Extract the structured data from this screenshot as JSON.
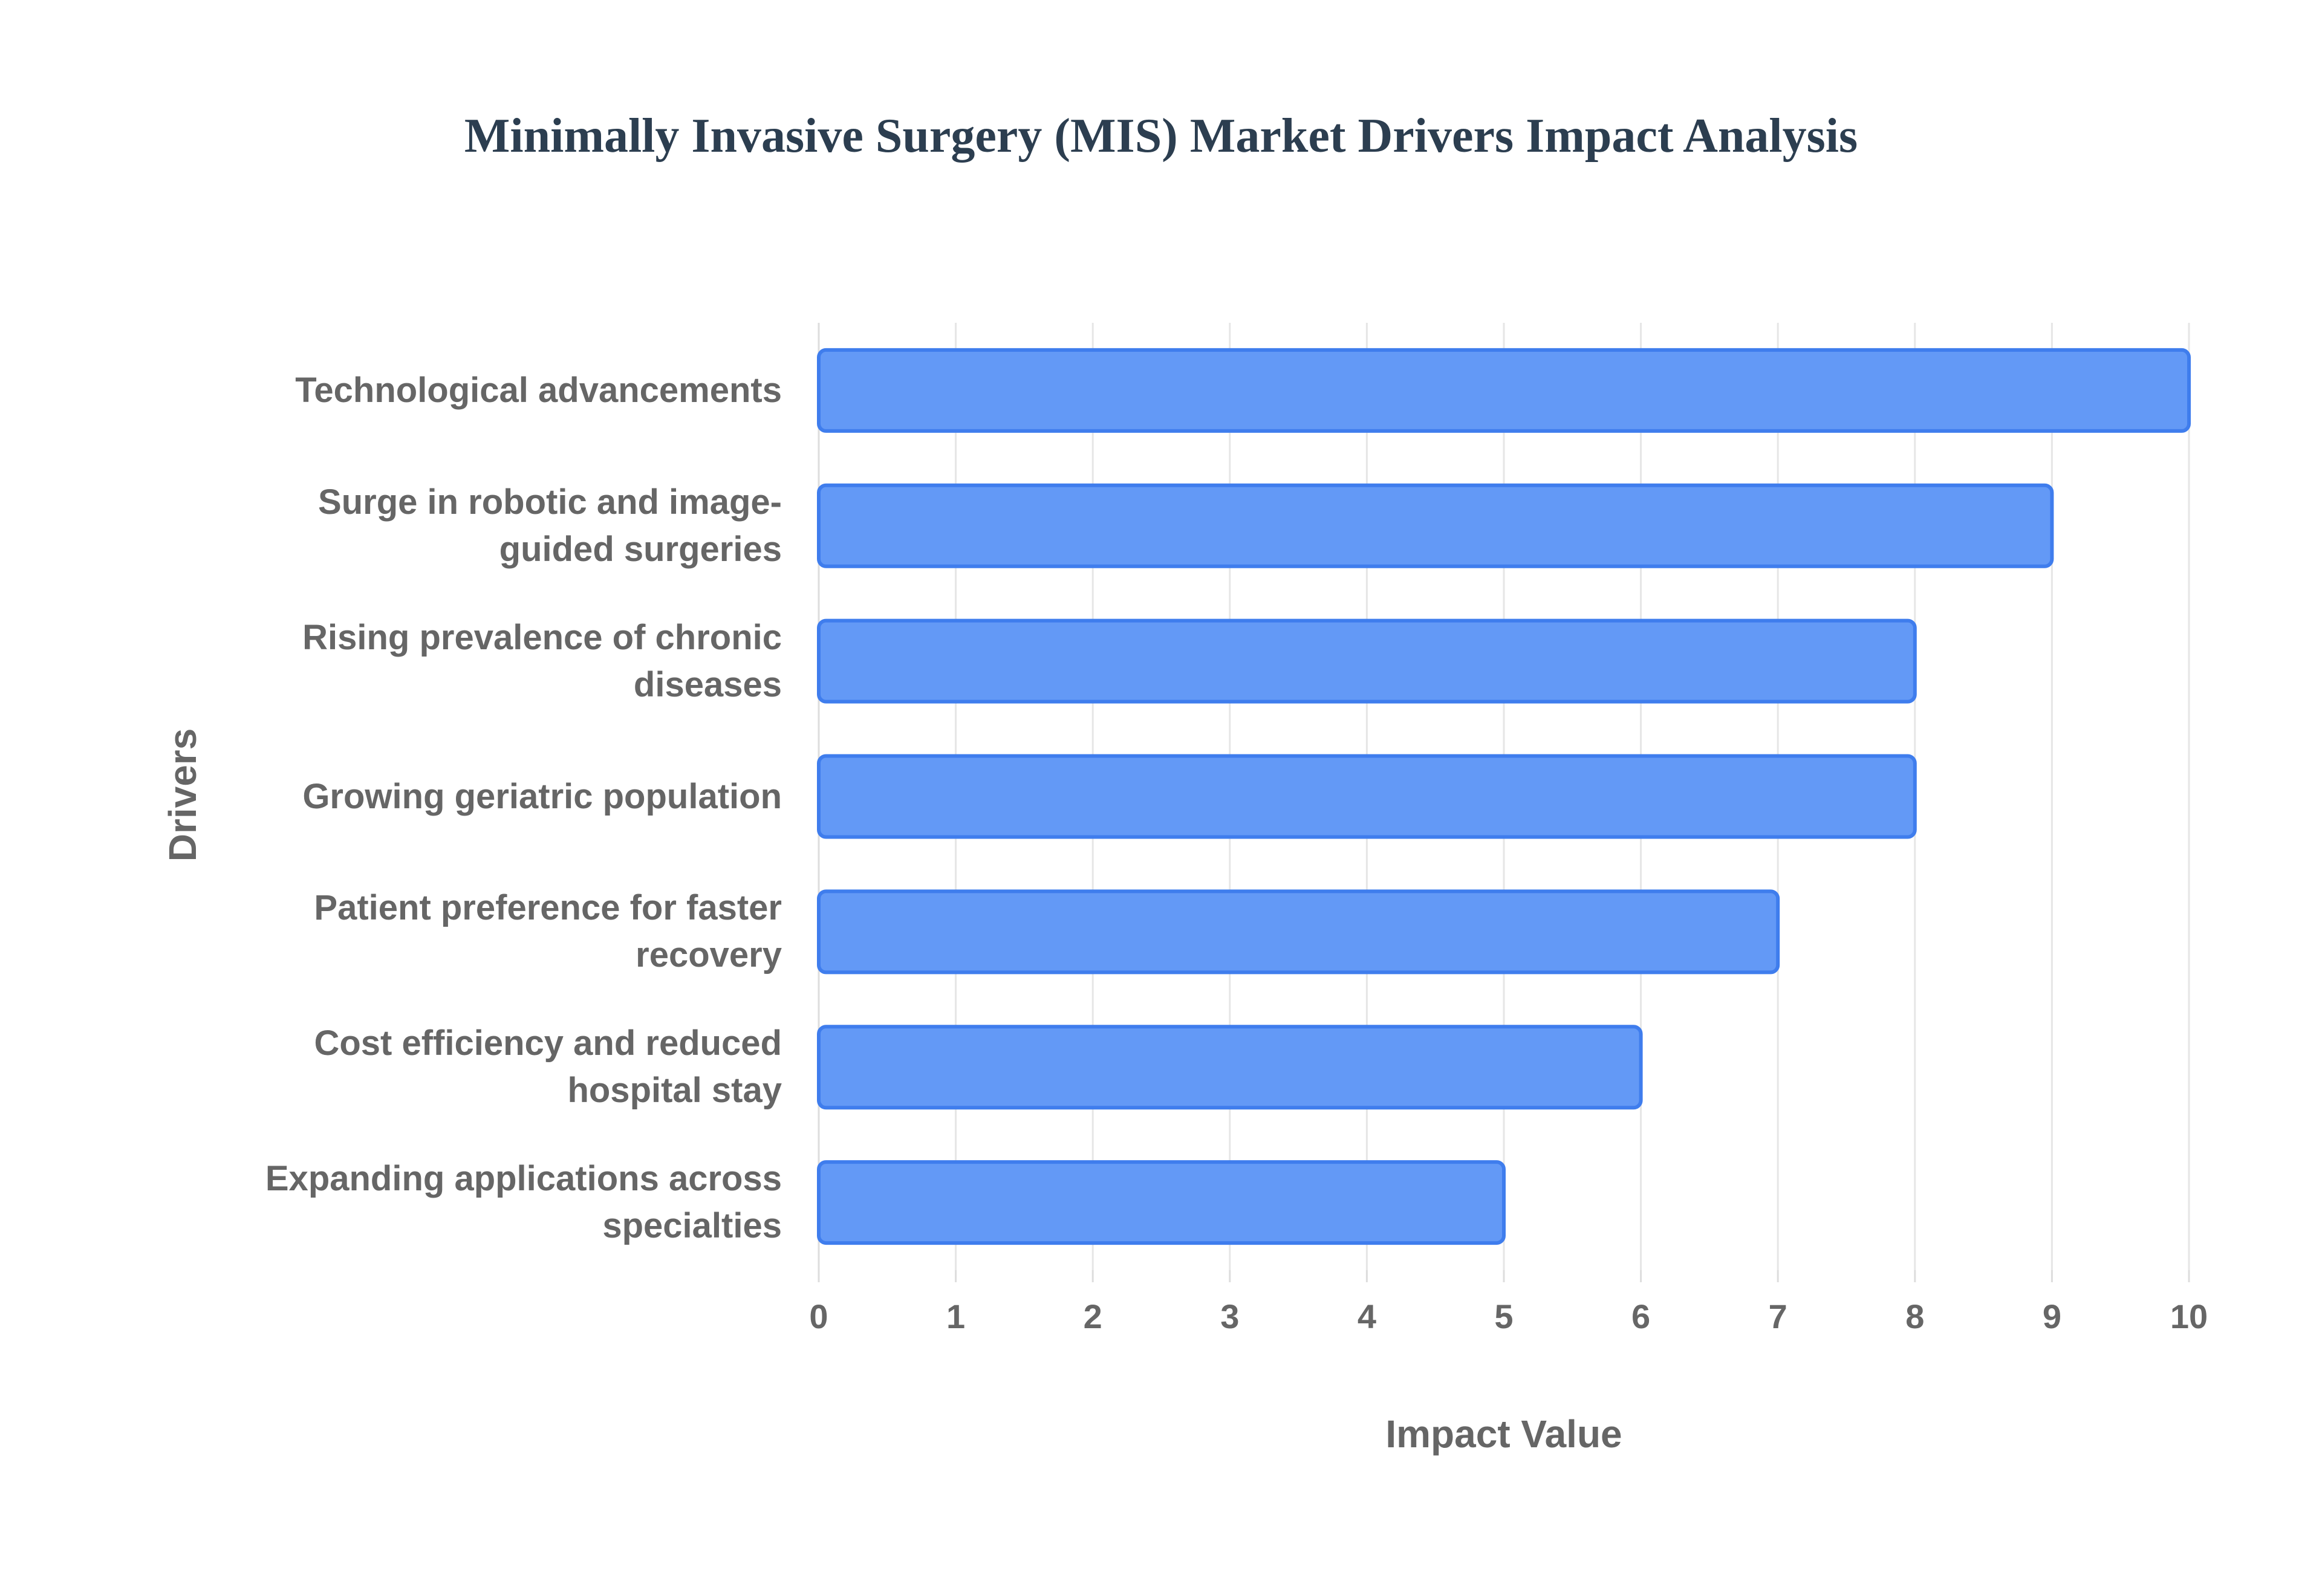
{
  "chart_data": {
    "type": "bar",
    "orientation": "horizontal",
    "title": "Minimally Invasive Surgery (MIS) Market Drivers Impact Analysis",
    "x_label": "Impact Value",
    "y_label": "Drivers",
    "categories": [
      "Technological advancements",
      "Surge in robotic and image-guided surgeries",
      "Rising prevalence of chronic diseases",
      "Growing geriatric population",
      "Patient preference for faster recovery",
      "Cost efficiency and reduced hospital stay",
      "Expanding applications across specialties"
    ],
    "values": [
      10,
      9,
      8,
      8,
      7,
      6,
      5
    ],
    "color": "#6399f6",
    "edge_color": "#3f7ded",
    "xlim": [
      0,
      10
    ],
    "xticks": [
      0,
      1,
      2,
      3,
      4,
      5,
      6,
      7,
      8,
      9,
      10
    ],
    "grid": true
  }
}
